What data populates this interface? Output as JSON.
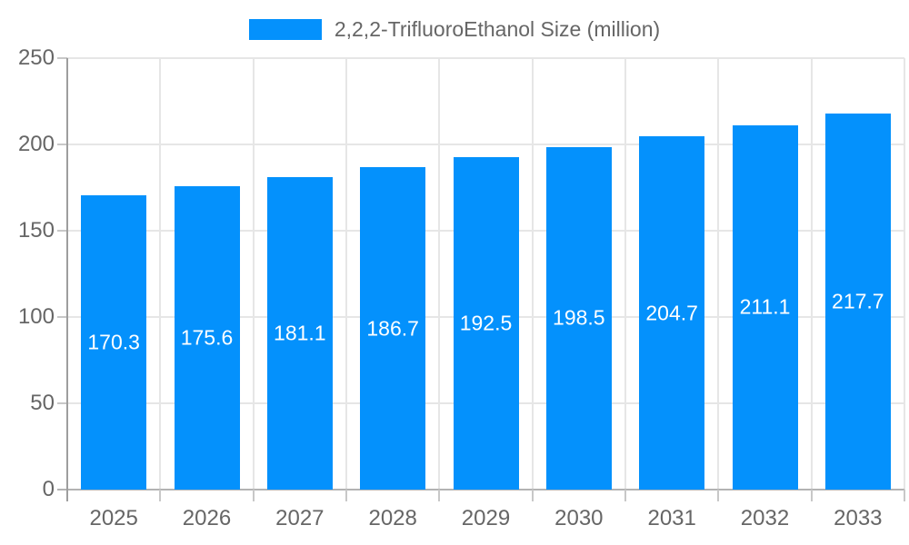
{
  "page": {
    "background": "#ffffff"
  },
  "legend": {
    "position": "top",
    "items": [
      {
        "label": "2,2,2-TrifluoroEthanol Size (million)",
        "swatch_color": "#0491fc"
      }
    ]
  },
  "chart_data": {
    "type": "bar",
    "title": "2,2,2-TrifluoroEthanol Size (million)",
    "categories": [
      "2025",
      "2026",
      "2027",
      "2028",
      "2029",
      "2030",
      "2031",
      "2032",
      "2033"
    ],
    "values": [
      170.3,
      175.6,
      181.1,
      186.7,
      192.5,
      198.5,
      204.7,
      211.1,
      217.7
    ],
    "value_labels": [
      "170.3",
      "175.6",
      "181.1",
      "186.7",
      "192.5",
      "198.5",
      "204.7",
      "211.1",
      "217.7"
    ],
    "xlabel": "",
    "ylabel": "",
    "ylim": [
      0,
      250
    ],
    "yticks": [
      0,
      50,
      100,
      150,
      200,
      250
    ],
    "grid": true,
    "legend_position": "top",
    "bar_color": "#0491fc",
    "bar_label_color": "#ffffff"
  },
  "colors": {
    "bar": "#0491fc",
    "axis_line": "#9e9e9e",
    "baseline": "#b3b3b3",
    "grid_line": "#e6e6e6",
    "tick": "#c8c8c8",
    "axis_text": "#666666",
    "bar_label_text": "#ffffff",
    "background": "#ffffff"
  }
}
